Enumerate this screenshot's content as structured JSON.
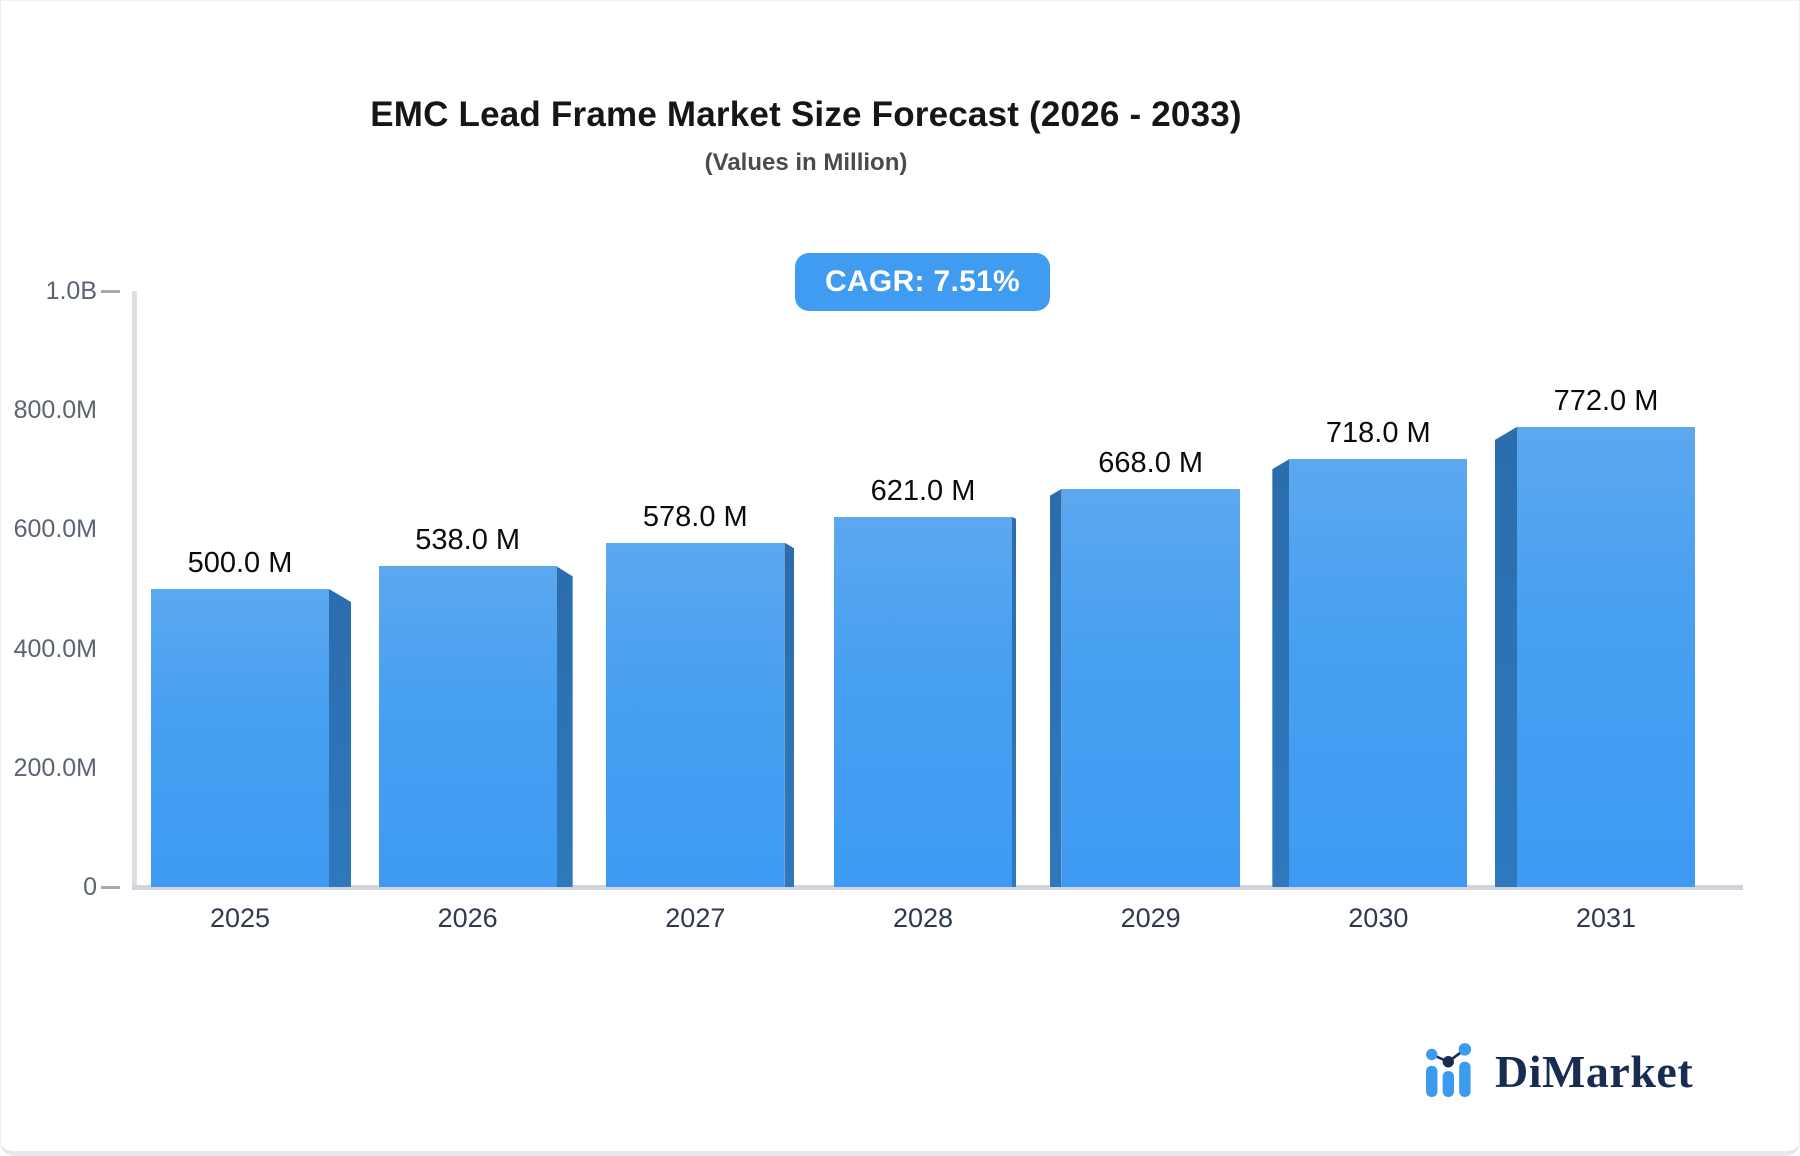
{
  "header": {
    "title": "EMC Lead Frame Market Size Forecast (2026 - 2033)",
    "subtitle": "(Values in Million)"
  },
  "badge": {
    "label": "CAGR: 7.51%",
    "bg_color": "#3f9cf0",
    "text_color": "#ffffff"
  },
  "chart_data": {
    "type": "bar",
    "categories": [
      "2025",
      "2026",
      "2027",
      "2028",
      "2029",
      "2030",
      "2031"
    ],
    "values": [
      500,
      538,
      578,
      621,
      668,
      718,
      772
    ],
    "value_labels": [
      "500.0 M",
      "538.0 M",
      "578.0 M",
      "621.0 M",
      "668.0 M",
      "718.0 M",
      "772.0 M"
    ],
    "title": "EMC Lead Frame Market Size Forecast (2026 - 2033)",
    "subtitle": "(Values in Million)",
    "xlabel": "",
    "ylabel": "",
    "ylim": [
      0,
      1000
    ],
    "y_ticks": [
      "0",
      "200.0M",
      "400.0M",
      "600.0M",
      "800.0M",
      "1.0B"
    ],
    "grid": false,
    "legend": false,
    "style_3d_perspective": true,
    "bar_color_top": "#5ca8ef",
    "bar_color_bottom": "#3e9af2",
    "bar_side_color": "#2e74b6",
    "axis_color": "#d1d4da"
  },
  "logo": {
    "name": "DiMarket",
    "icon": "bar-chart-icon",
    "text_color": "#182c52",
    "accent_color": "#3d9bef"
  }
}
